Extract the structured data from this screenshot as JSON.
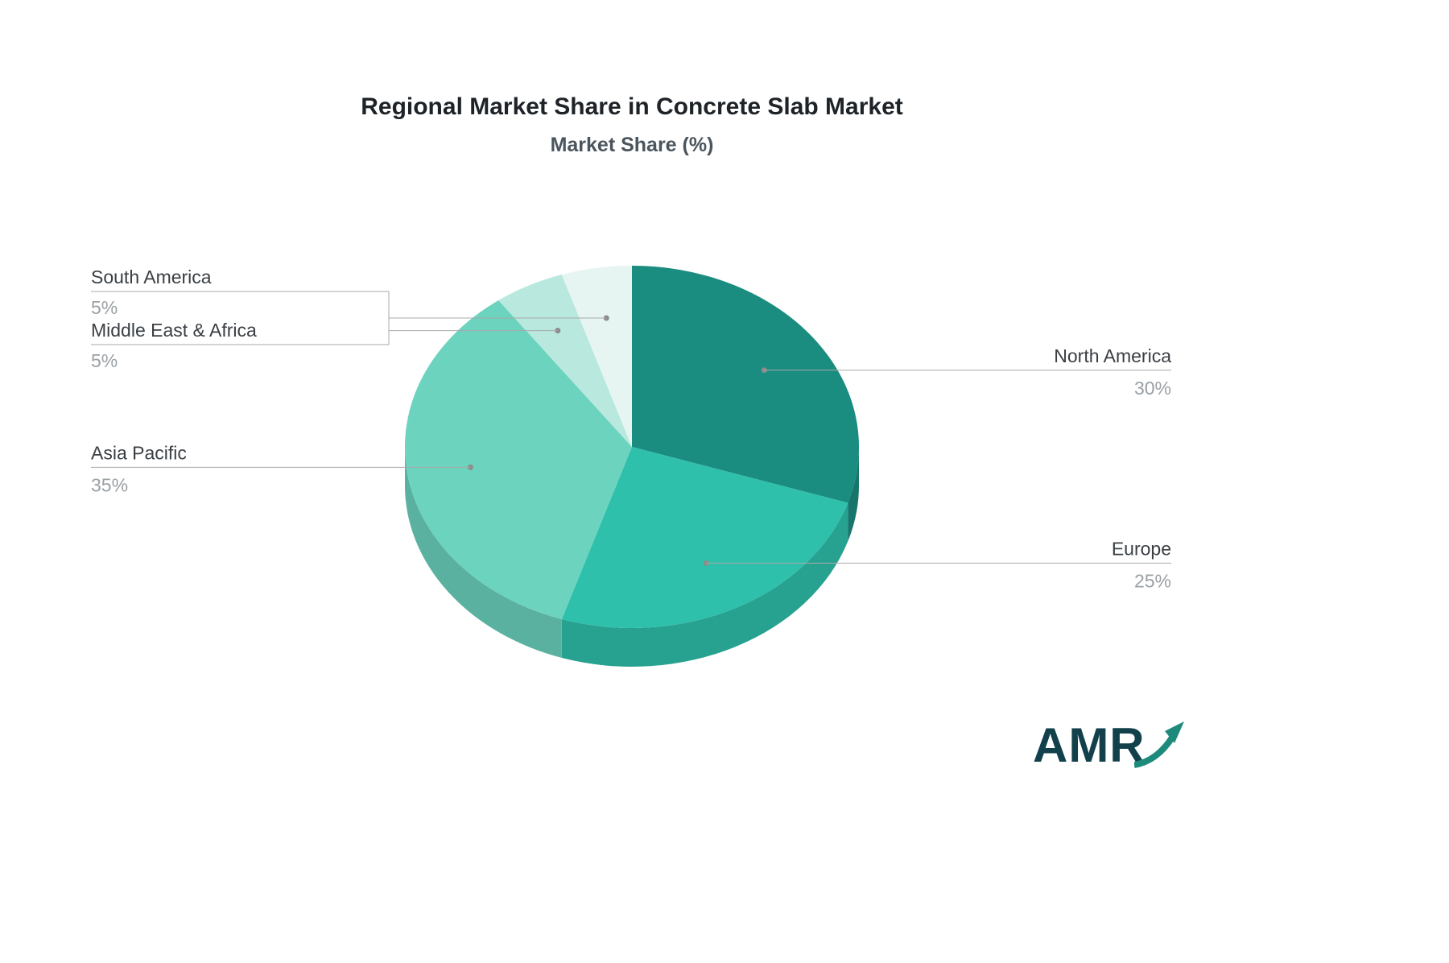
{
  "chart_data": {
    "type": "pie",
    "title": "Regional Market Share in Concrete Slab Market",
    "subtitle": "Market Share (%)",
    "unit": "%",
    "start_angle_deg": -90,
    "direction": "clockwise",
    "effect": "3d",
    "labels_format": "{value}%",
    "legend_position": "callout-labels",
    "slices": [
      {
        "label": "North America",
        "value": 30,
        "color": "#1a8c80"
      },
      {
        "label": "Europe",
        "value": 25,
        "color": "#2fc0ab"
      },
      {
        "label": "Asia Pacific",
        "value": 35,
        "color": "#6cd3bf"
      },
      {
        "label": "Middle East & Africa",
        "value": 5,
        "color": "#b9e8de"
      },
      {
        "label": "South America",
        "value": 5,
        "color": "#e7f5f2"
      }
    ]
  },
  "label_colors": {
    "name": "#3a3f44",
    "value": "#9aa0a4",
    "leader_line": "#a9a9a9"
  },
  "logo": {
    "text": "AMR",
    "text_color": "#12414c",
    "arrow_color": "#1e8a7c"
  }
}
